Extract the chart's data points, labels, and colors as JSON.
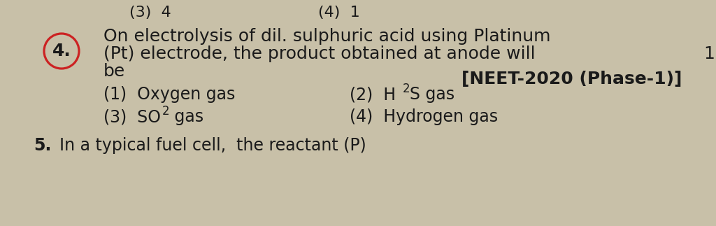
{
  "bg_color": "#c8c0a8",
  "top_left_text": "(3)  4",
  "top_center_text": "(4)  1",
  "question_number": "4.",
  "question_text_line1": "On electrolysis of dil. sulphuric acid using Platinum",
  "question_text_line2": "(Pt) electrode, the product obtained at anode will",
  "question_text_line3": "be",
  "reference": "[NEET-2020 (Phase-1)]",
  "opt1": "(1)  Oxygen gas",
  "opt2_prefix": "(2)  H",
  "opt2_sub": "2",
  "opt2_suffix": "S gas",
  "opt3_prefix": "(3)  SO",
  "opt3_sub": "2",
  "opt3_suffix": " gas",
  "opt4": "(4)  Hydrogen gas",
  "footer_num": "5.",
  "footer_text": "In a typical fuel cell,  the reactant (P)",
  "right_edge_num": "1",
  "circle_color": "#cc2222",
  "text_color": "#1a1a1a",
  "font_size_main": 18,
  "font_size_options": 17,
  "font_size_top": 16,
  "font_size_footer": 17,
  "font_size_ref": 18,
  "font_size_sub": 12
}
